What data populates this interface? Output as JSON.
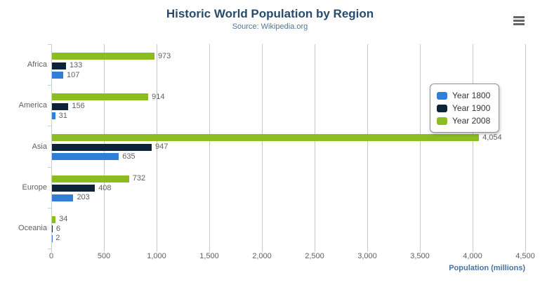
{
  "title": "Historic World Population by Region",
  "subtitle": "Source: Wikipedia.org",
  "context_menu": {
    "icon": "hamburger-menu"
  },
  "chart_data": {
    "type": "bar",
    "orientation": "horizontal",
    "title": "Historic World Population by Region",
    "subtitle": "Source: Wikipedia.org",
    "categories": [
      "Africa",
      "America",
      "Asia",
      "Europe",
      "Oceania"
    ],
    "series": [
      {
        "name": "Year 1800",
        "color": "#2f7ed8",
        "values": [
          107,
          31,
          635,
          203,
          2
        ]
      },
      {
        "name": "Year 1900",
        "color": "#0d233a",
        "values": [
          133,
          156,
          947,
          408,
          6
        ]
      },
      {
        "name": "Year 2008",
        "color": "#8bbc21",
        "values": [
          973,
          914,
          4054,
          732,
          34
        ]
      }
    ],
    "bar_order_top_to_bottom": [
      "Year 2008",
      "Year 1900",
      "Year 1800"
    ],
    "xlabel": "Population (millions)",
    "ylabel": "",
    "xlim": [
      0,
      4500
    ],
    "x_tick_step": 500,
    "x_tick_labels": [
      "0",
      "500",
      "1,000",
      "1,500",
      "2,000",
      "2,500",
      "3,000",
      "3,500",
      "4,000",
      "4,500"
    ],
    "grid": true,
    "data_labels": true,
    "legend_position": "right-inside"
  },
  "style_colors": {
    "title": "#274b6d",
    "subtitle": "#4d759e",
    "axis_labels": "#606060",
    "value_labels": "#606060",
    "axis_title": "#4572a7",
    "gridline": "#c8c8c8",
    "axis_line": "#c0d0e0",
    "legend_border": "#909090",
    "legend_text": "#333333",
    "menu_icon": "#666666",
    "background": "#ffffff"
  }
}
